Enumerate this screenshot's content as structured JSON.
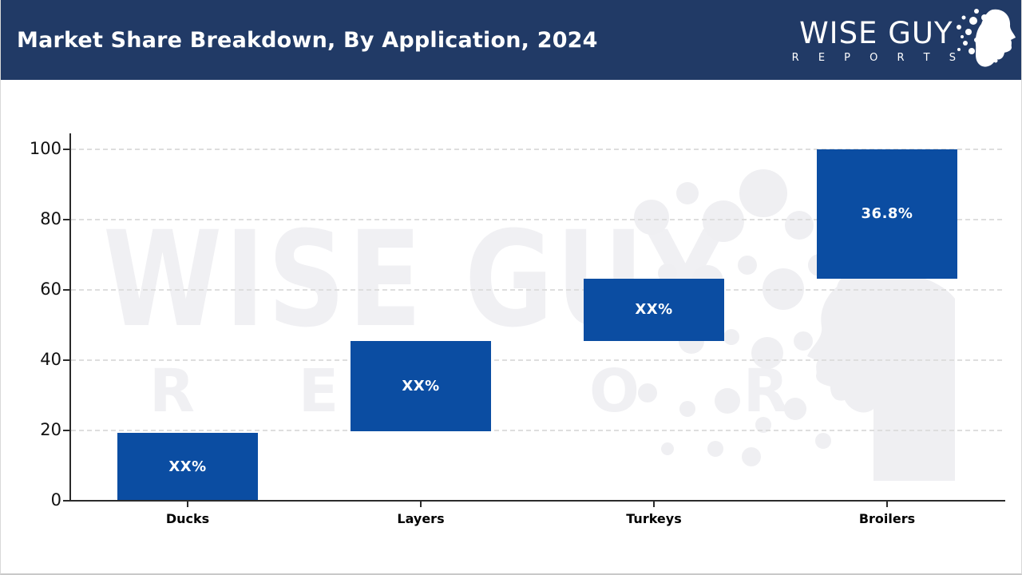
{
  "header": {
    "title": "Market Share Breakdown, By Application, 2024",
    "bg_color": "#213a66",
    "logo": {
      "line1": "WISE GUY",
      "line2": "R E P O R T S"
    }
  },
  "watermark": {
    "line1": "WISE GUY",
    "line2": "R E P O R T S"
  },
  "chart_data": {
    "type": "bar",
    "subtype": "floating-segment-waterfall",
    "title": "Market Share Breakdown, By Application, 2024",
    "categories": [
      "Ducks",
      "Layers",
      "Turkeys",
      "Broilers"
    ],
    "segments": [
      {
        "category": "Ducks",
        "start": 0,
        "end": 19.3,
        "label": "XX%"
      },
      {
        "category": "Layers",
        "start": 19.8,
        "end": 45.5,
        "label": "XX%"
      },
      {
        "category": "Turkeys",
        "start": 45.5,
        "end": 63.2,
        "label": "XX%"
      },
      {
        "category": "Broilers",
        "start": 63.2,
        "end": 100,
        "label": "36.8%"
      }
    ],
    "y_ticks": [
      0,
      20,
      40,
      60,
      80,
      100
    ],
    "ylim": [
      0,
      100
    ],
    "xlabel": "",
    "ylabel": "",
    "bar_color": "#0b4da2",
    "grid": "horizontal-dashed"
  }
}
